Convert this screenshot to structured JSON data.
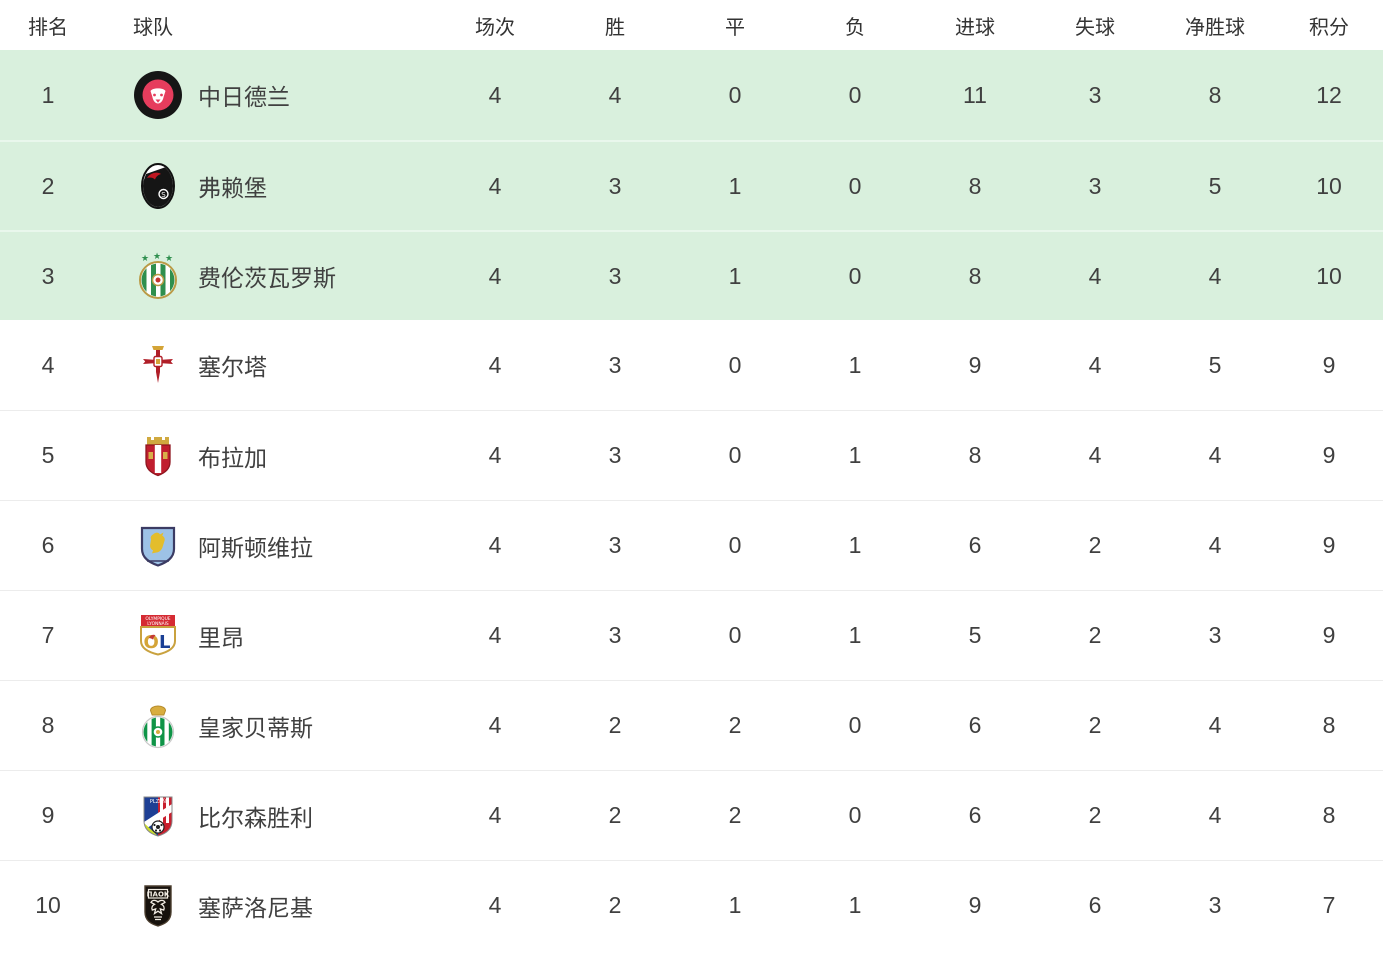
{
  "table": {
    "headers": [
      {
        "key": "rank",
        "label": "排名"
      },
      {
        "key": "team",
        "label": "球队"
      },
      {
        "key": "played",
        "label": "场次"
      },
      {
        "key": "win",
        "label": "胜"
      },
      {
        "key": "draw",
        "label": "平"
      },
      {
        "key": "loss",
        "label": "负"
      },
      {
        "key": "goals-for",
        "label": "进球"
      },
      {
        "key": "goals-against",
        "label": "失球"
      },
      {
        "key": "goal-diff",
        "label": "净胜球"
      },
      {
        "key": "points",
        "label": "积分"
      }
    ],
    "stat_keys": [
      "played",
      "win",
      "draw",
      "loss",
      "goals-for",
      "goals-against",
      "goal-diff",
      "points"
    ],
    "rows": [
      {
        "rank": "1",
        "team": "中日德兰",
        "logo": "midtjylland-logo",
        "logo_key": "midtjylland",
        "highlighted": true,
        "stats": [
          "4",
          "4",
          "0",
          "0",
          "11",
          "3",
          "8",
          "12"
        ]
      },
      {
        "rank": "2",
        "team": "弗赖堡",
        "logo": "freiburg-logo",
        "logo_key": "freiburg",
        "highlighted": true,
        "stats": [
          "4",
          "3",
          "1",
          "0",
          "8",
          "3",
          "5",
          "10"
        ]
      },
      {
        "rank": "3",
        "team": "费伦茨瓦罗斯",
        "logo": "ferencvaros-logo",
        "logo_key": "ferencvaros",
        "highlighted": true,
        "stats": [
          "4",
          "3",
          "1",
          "0",
          "8",
          "4",
          "4",
          "10"
        ]
      },
      {
        "rank": "4",
        "team": "塞尔塔",
        "logo": "celta-logo",
        "logo_key": "celta",
        "highlighted": false,
        "stats": [
          "4",
          "3",
          "0",
          "1",
          "9",
          "4",
          "5",
          "9"
        ]
      },
      {
        "rank": "5",
        "team": "布拉加",
        "logo": "braga-logo",
        "logo_key": "braga",
        "highlighted": false,
        "stats": [
          "4",
          "3",
          "0",
          "1",
          "8",
          "4",
          "4",
          "9"
        ]
      },
      {
        "rank": "6",
        "team": "阿斯顿维拉",
        "logo": "aston-villa-logo",
        "logo_key": "astonvilla",
        "highlighted": false,
        "stats": [
          "4",
          "3",
          "0",
          "1",
          "6",
          "2",
          "4",
          "9"
        ]
      },
      {
        "rank": "7",
        "team": "里昂",
        "logo": "lyon-logo",
        "logo_key": "lyon",
        "highlighted": false,
        "stats": [
          "4",
          "3",
          "0",
          "1",
          "5",
          "2",
          "3",
          "9"
        ]
      },
      {
        "rank": "8",
        "team": "皇家贝蒂斯",
        "logo": "real-betis-logo",
        "logo_key": "betis",
        "highlighted": false,
        "stats": [
          "4",
          "2",
          "2",
          "0",
          "6",
          "2",
          "4",
          "8"
        ]
      },
      {
        "rank": "9",
        "team": "比尔森胜利",
        "logo": "viktoria-plzen-logo",
        "logo_key": "plzen",
        "highlighted": false,
        "stats": [
          "4",
          "2",
          "2",
          "0",
          "6",
          "2",
          "4",
          "8"
        ]
      },
      {
        "rank": "10",
        "team": "塞萨洛尼基",
        "logo": "paok-logo",
        "logo_key": "paok",
        "highlighted": false,
        "stats": [
          "4",
          "2",
          "1",
          "1",
          "9",
          "6",
          "3",
          "7"
        ]
      }
    ]
  },
  "colors": {
    "highlight_row_bg": "#d9f0dd",
    "row_bg": "#ffffff",
    "divider": "#ececec",
    "highlight_divider": "#e9f7ec",
    "header_text": "#333333",
    "cell_text": "#404040"
  }
}
